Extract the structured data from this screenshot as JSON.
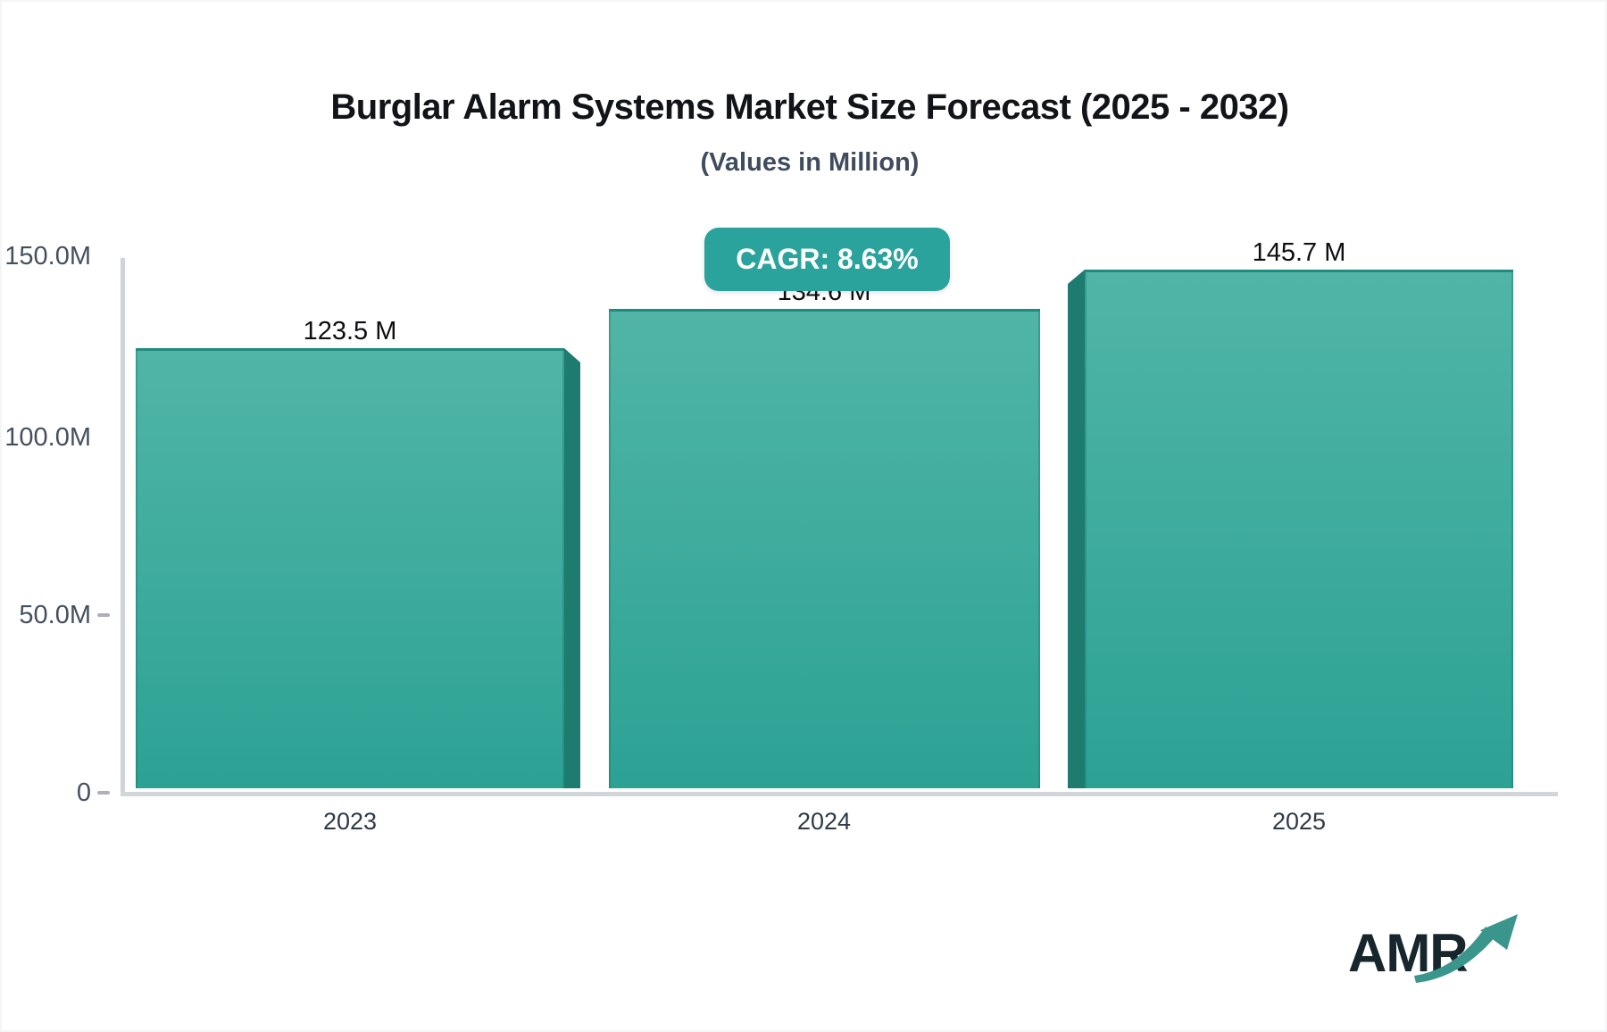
{
  "title": "Burglar Alarm Systems Market Size Forecast (2025 - 2032)",
  "subtitle": "(Values in Million)",
  "cagr_badge": "CAGR: 8.63%",
  "logo_text": "AMR",
  "y_axis": {
    "tick_labels": [
      "150.0M",
      "100.0M",
      "50.0M",
      "0"
    ]
  },
  "chart_data": {
    "type": "bar",
    "title": "Burglar Alarm Systems Market Size Forecast (2025 - 2032)",
    "subtitle": "(Values in Million)",
    "unit": "Million",
    "cagr_percent": 8.63,
    "categories": [
      "2023",
      "2024",
      "2025"
    ],
    "values": [
      123.5,
      134.6,
      145.7
    ],
    "value_labels": [
      "123.5 M",
      "134.6 M",
      "145.7 M"
    ],
    "ylim": [
      0,
      150
    ],
    "ytick_values": [
      0,
      50,
      100,
      150
    ],
    "ytick_labels": [
      "0",
      "50.0M",
      "100.0M",
      "150.0M"
    ],
    "grid": false,
    "legend": "none",
    "bar_color_top": "#50b5a7",
    "bar_color_bottom": "#2ca294",
    "bar_side_color": "#1d7b70",
    "badge_color": "#29a39c",
    "axis_color": "#d2d6db"
  }
}
